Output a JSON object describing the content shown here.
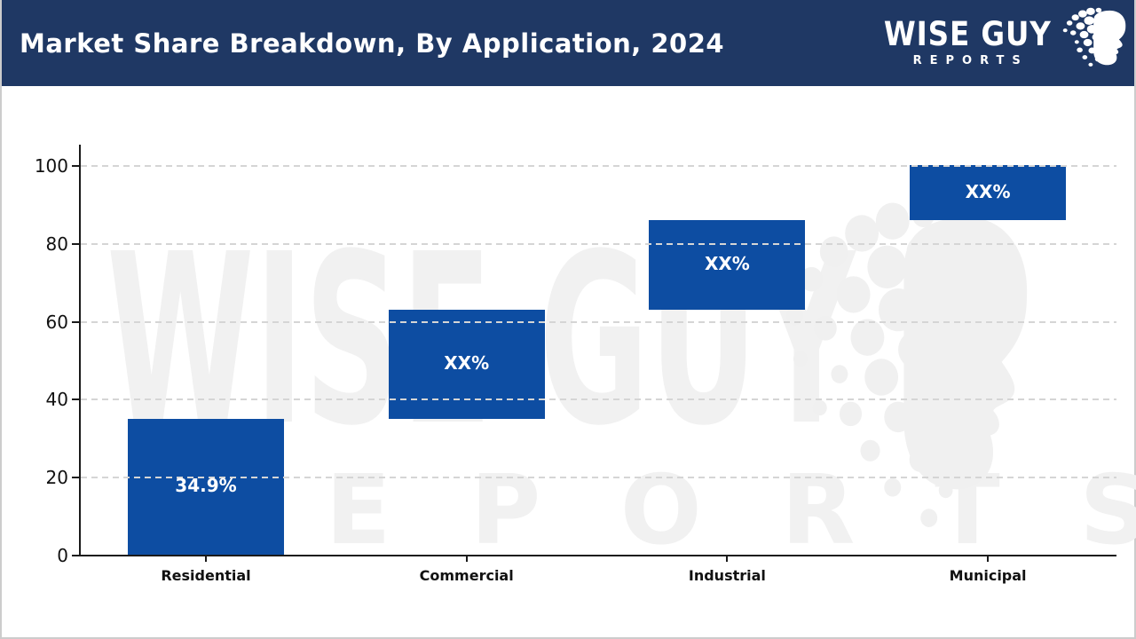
{
  "header": {
    "title": "Market Share Breakdown, By Application, 2024",
    "logo": {
      "line1": "WISE GUY",
      "line2": "REPORTS"
    }
  },
  "watermark": {
    "line1": "WISE GUY",
    "line2": "R E P O R T S"
  },
  "chart_data": {
    "type": "bar",
    "subtype": "waterfall",
    "title": "Market Share Breakdown, By Application, 2024",
    "categories": [
      "Residential",
      "Commercial",
      "Industrial",
      "Municipal"
    ],
    "segments": [
      {
        "category": "Residential",
        "start": 0,
        "end": 34.9,
        "label": "34.9%"
      },
      {
        "category": "Commercial",
        "start": 34.9,
        "end": 62.9,
        "label": "XX%"
      },
      {
        "category": "Industrial",
        "start": 62.9,
        "end": 85.9,
        "label": "XX%"
      },
      {
        "category": "Municipal",
        "start": 85.9,
        "end": 100,
        "label": "XX%"
      }
    ],
    "xlabel": "",
    "ylabel": "",
    "ylim": [
      0,
      100
    ],
    "yticks": [
      0,
      20,
      40,
      60,
      80,
      100
    ],
    "grid": "horizontal-dashed, drawn above bars",
    "legend": "none"
  },
  "colors": {
    "header_bg": "#1f3864",
    "bar": "#0d4da2",
    "bar_label": "#ffffff",
    "grid": "#d5d5d5",
    "axis": "#1a1a1a",
    "watermark": "#f1f1f1",
    "page_border": "#cccccc"
  },
  "icons": {
    "logo_face": "wiseguy-dotted-face-icon",
    "watermark_face": "wiseguy-dotted-face-watermark"
  }
}
